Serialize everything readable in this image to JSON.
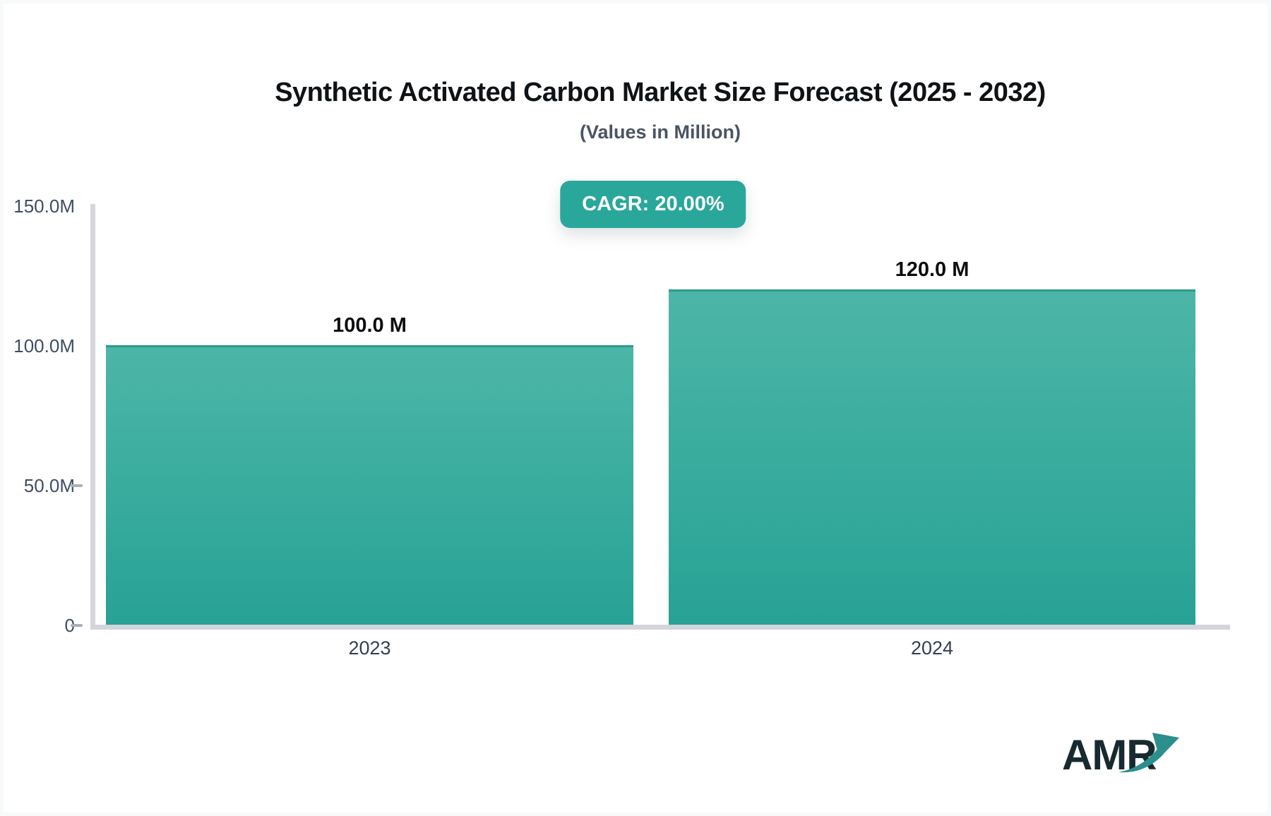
{
  "header": {
    "title": "Synthetic Activated Carbon Market Size Forecast (2025 - 2032)",
    "subtitle": "(Values in Million)"
  },
  "badge": {
    "label": "CAGR: 20.00%"
  },
  "chart_data": {
    "type": "bar",
    "title": "Synthetic Activated Carbon Market Size Forecast (2025 - 2032)",
    "subtitle": "(Values in Million)",
    "cagr": "20.00%",
    "categories": [
      "2023",
      "2024"
    ],
    "values": [
      100.0,
      120.0
    ],
    "value_labels": [
      "100.0 M",
      "120.0 M"
    ],
    "ylim": [
      0,
      150
    ],
    "yticks": [
      {
        "value": 150,
        "label": "150.0M",
        "dash": false
      },
      {
        "value": 100,
        "label": "100.0M",
        "dash": false
      },
      {
        "value": 50,
        "label": "50.0M",
        "dash": true
      },
      {
        "value": 0,
        "label": "0",
        "dash": true
      }
    ],
    "grid": false,
    "legend": false,
    "colors": {
      "bar_gradient_top": "#4cb6a8",
      "bar_gradient_bottom": "#27a295",
      "bar_top_edge": "#2d9a8c",
      "badge": "#2aa79b",
      "axis": "#d5d7dc"
    }
  },
  "logo": {
    "text": "AMR",
    "arrow_color": "#2b8f8c",
    "text_color": "#182a2f"
  }
}
